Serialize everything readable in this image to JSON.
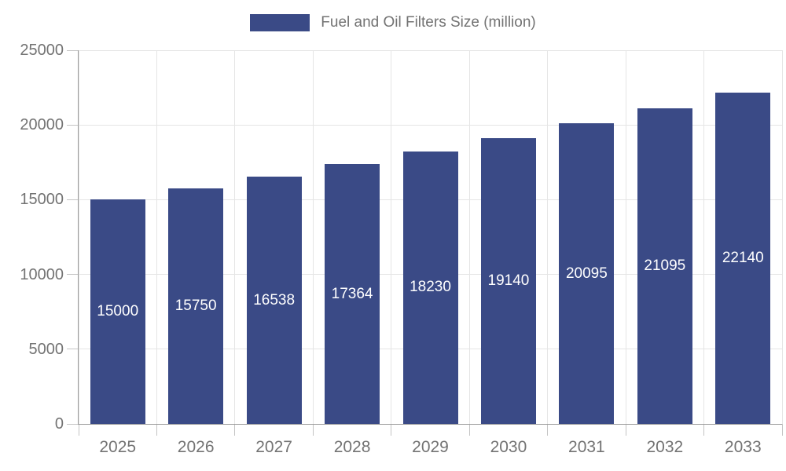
{
  "legend": {
    "label": "Fuel and Oil Filters Size (million)"
  },
  "colors": {
    "bar": "#3A4A86",
    "grid": "#E5E5E5",
    "axis": "#9B9B9B",
    "tick": "#C4C4C4",
    "tick_label": "#737373",
    "value_label": "#FFFFFF",
    "background": "#FFFFFF"
  },
  "chart_data": {
    "type": "bar",
    "title": "Fuel and Oil Filters Size (million)",
    "series_name": "Fuel and Oil Filters Size (million)",
    "categories": [
      "2025",
      "2026",
      "2027",
      "2028",
      "2029",
      "2030",
      "2031",
      "2032",
      "2033"
    ],
    "values": [
      15000,
      15750,
      16538,
      17364,
      18230,
      19140,
      20095,
      21095,
      22140
    ],
    "xlabel": "",
    "ylabel": "",
    "ylim": [
      0,
      25000
    ],
    "yticks": [
      0,
      5000,
      10000,
      15000,
      20000,
      25000
    ],
    "grid": true,
    "legend_position": "top",
    "value_label_position": "inside-center"
  }
}
